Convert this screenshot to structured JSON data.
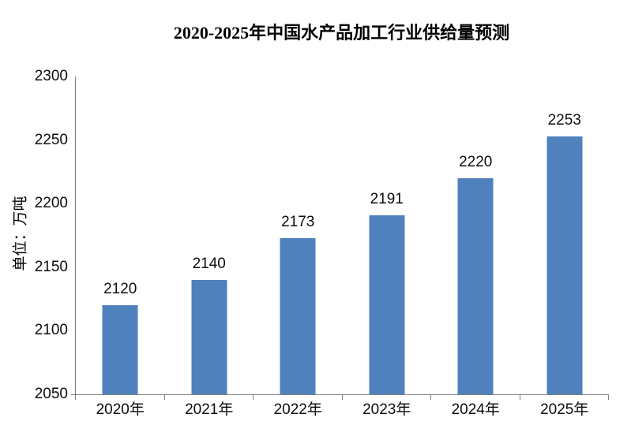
{
  "chart_data": {
    "type": "bar",
    "title": "2020-2025年中国水产品加工行业供给量预测",
    "ylabel": "单位：万吨",
    "xlabel": "",
    "categories": [
      "2020年",
      "2021年",
      "2022年",
      "2023年",
      "2024年",
      "2025年"
    ],
    "values": [
      2120,
      2140,
      2173,
      2191,
      2220,
      2253
    ],
    "ylim": [
      2050,
      2300
    ],
    "yticks": [
      2050,
      2100,
      2150,
      2200,
      2250,
      2300
    ],
    "data_labels": true,
    "grid": false,
    "legend": "none",
    "bar_color": "#4F81BD",
    "axis_color": "#808080",
    "text_color": "#0d0d0d",
    "background_color": "#ffffff"
  }
}
